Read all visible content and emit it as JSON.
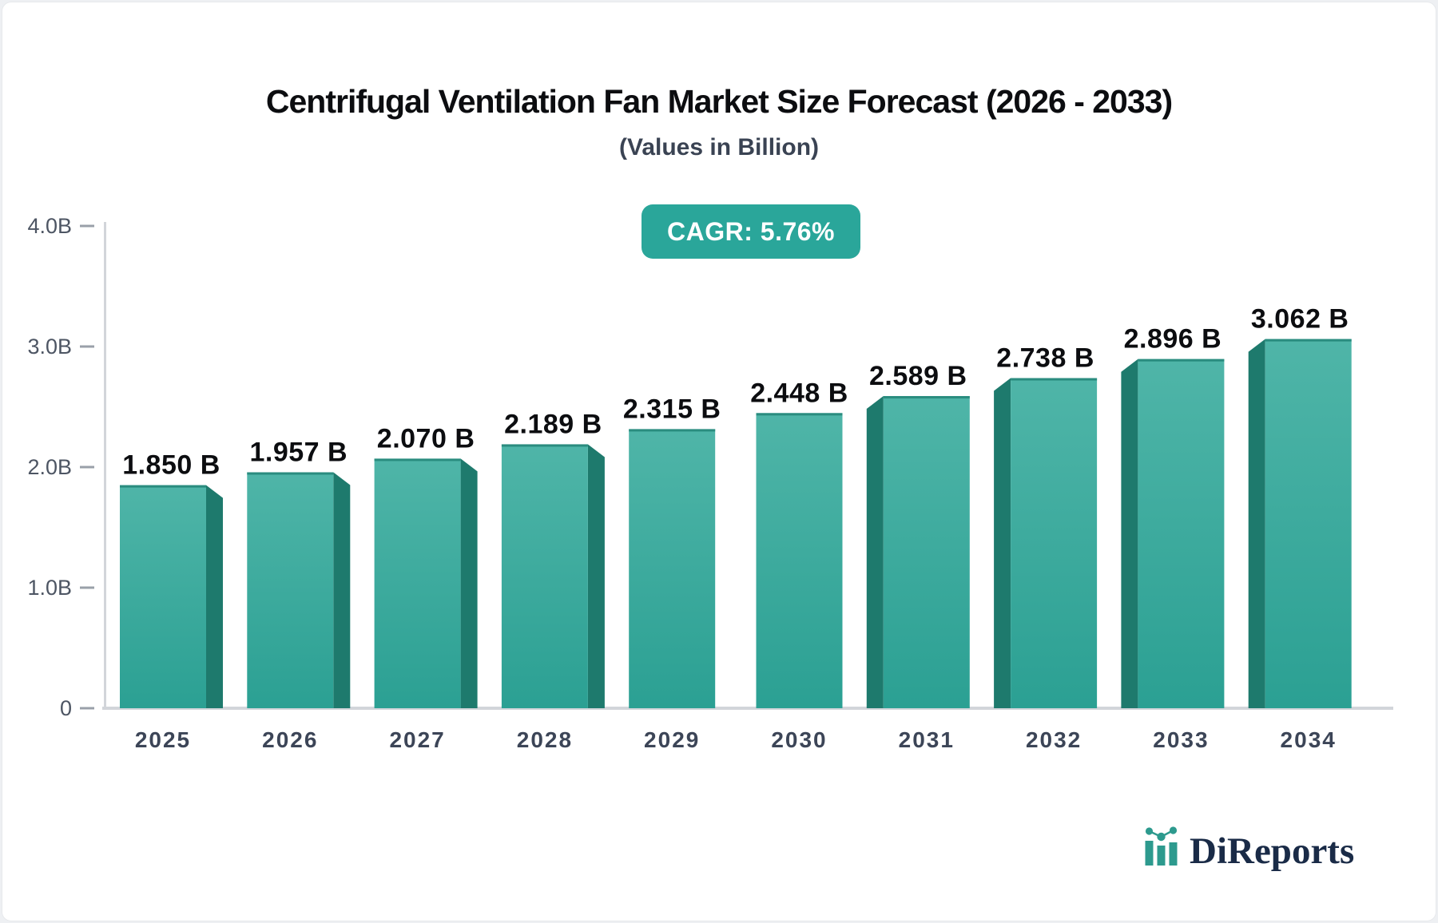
{
  "header": {
    "title": "Centrifugal Ventilation Fan Market Size Forecast (2026 - 2033)",
    "subtitle": "(Values in Billion)"
  },
  "badge": {
    "label": "CAGR: 5.76%"
  },
  "logo": {
    "text": "DiReports",
    "icon": "mini-bar-chart-logo-icon"
  },
  "colors": {
    "bar_face_top": "#4fb5a8",
    "bar_face_bottom": "#2ba093",
    "bar_side": "#1e7a6d",
    "bar_top_edge": "#2a8c7f",
    "badge_bg": "#2aa69a",
    "axis_line": "#d2d5da",
    "tick_dash": "#9aa0a9",
    "tick_text": "#4d5563",
    "year_text": "#3c4557",
    "value_text": "#0c0d10",
    "logo_text": "#1a2b47",
    "logo_teal": "#2d9a8e"
  },
  "chart_data": {
    "type": "bar",
    "title": "Centrifugal Ventilation Fan Market Size Forecast (2026 - 2033)",
    "subtitle": "(Values in Billion)",
    "cagr_label": "CAGR: 5.76%",
    "categories": [
      "2025",
      "2026",
      "2027",
      "2028",
      "2029",
      "2030",
      "2031",
      "2032",
      "2033",
      "2034"
    ],
    "values": [
      1.85,
      1.957,
      2.07,
      2.189,
      2.315,
      2.448,
      2.589,
      2.738,
      2.896,
      3.062
    ],
    "value_labels": [
      "1.850 B",
      "1.957 B",
      "2.070 B",
      "2.189 B",
      "2.315 B",
      "2.448 B",
      "2.589 B",
      "2.738 B",
      "2.896 B",
      "3.062 B"
    ],
    "unit": "Billion",
    "xlabel": "",
    "ylabel": "",
    "ylim": [
      0,
      4
    ],
    "grid": false,
    "legend": false,
    "yticks": [
      {
        "value": 0,
        "label": "0"
      },
      {
        "value": 1,
        "label": "1.0B"
      },
      {
        "value": 2,
        "label": "2.0B"
      },
      {
        "value": 3,
        "label": "3.0B"
      },
      {
        "value": 4,
        "label": "4.0B"
      }
    ]
  }
}
